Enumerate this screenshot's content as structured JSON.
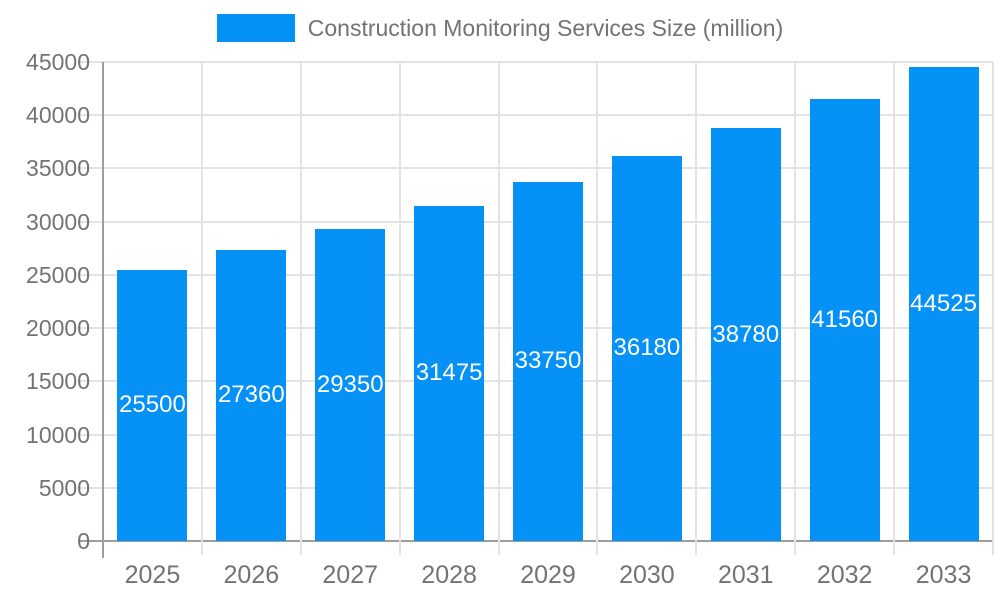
{
  "chart_data": {
    "type": "bar",
    "title": "Construction Monitoring Services Size (million)",
    "categories": [
      "2025",
      "2026",
      "2027",
      "2028",
      "2029",
      "2030",
      "2031",
      "2032",
      "2033"
    ],
    "values": [
      25500,
      27360,
      29350,
      31475,
      33750,
      36180,
      38780,
      41560,
      44525
    ],
    "value_labels": [
      "25500",
      "27360",
      "29350",
      "31475",
      "33750",
      "36180",
      "38780",
      "41560",
      "44525"
    ],
    "ytick_labels": [
      "0",
      "5000",
      "10000",
      "15000",
      "20000",
      "25000",
      "30000",
      "35000",
      "40000",
      "45000"
    ],
    "ytick_values": [
      0,
      5000,
      10000,
      15000,
      20000,
      25000,
      30000,
      35000,
      40000,
      45000
    ],
    "ylim": [
      0,
      45000
    ],
    "xlabel": "",
    "ylabel": "",
    "grid": true,
    "legend_position": "top-center",
    "colors": {
      "bar": "#0691F7",
      "gridline": "#e3e3e3",
      "axis": "#9e9e9e",
      "axis_text": "#737373",
      "value_text": "#ffffff",
      "background": "#ffffff"
    }
  }
}
